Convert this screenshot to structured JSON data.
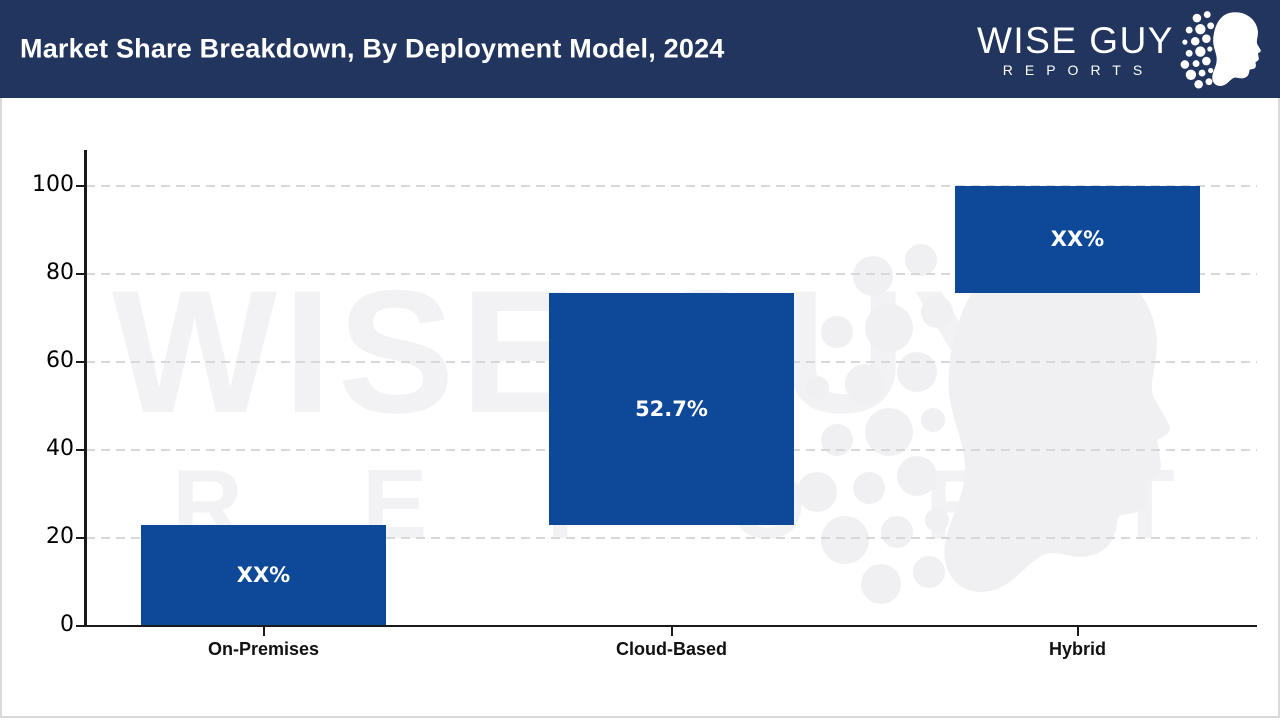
{
  "header": {
    "title": "Market Share Breakdown, By Deployment Model, 2024",
    "logo": {
      "line1": "WISE GUY",
      "line2": "REPORTS"
    }
  },
  "watermark": {
    "word": "WISE GUY",
    "reports": "R E P O R T S"
  },
  "colors": {
    "header_bg": "#21355F",
    "bar": "#0D4899",
    "bar_label": "#ffffff",
    "gridline": "#d8d8d8",
    "axis": "#1a1a1a",
    "watermark": "#f2f2f4"
  },
  "chart_data": {
    "type": "bar",
    "variant": "waterfall",
    "title": "Market Share Breakdown, By Deployment Model, 2024",
    "categories": [
      "On-Premises",
      "Cloud-Based",
      "Hybrid"
    ],
    "segments": [
      {
        "category": "On-Premises",
        "start": 0,
        "end": 23,
        "value": 23,
        "label": "XX%"
      },
      {
        "category": "Cloud-Based",
        "start": 23,
        "end": 75.7,
        "value": 52.7,
        "label": "52.7%"
      },
      {
        "category": "Hybrid",
        "start": 75.7,
        "end": 100,
        "value": 24.3,
        "label": "XX%"
      }
    ],
    "ylabel": "",
    "xlabel": "",
    "ylim": [
      0,
      100
    ],
    "yticks": [
      0,
      20,
      40,
      60,
      80,
      100
    ],
    "grid": "horizontal-dashed",
    "legend": "none"
  }
}
